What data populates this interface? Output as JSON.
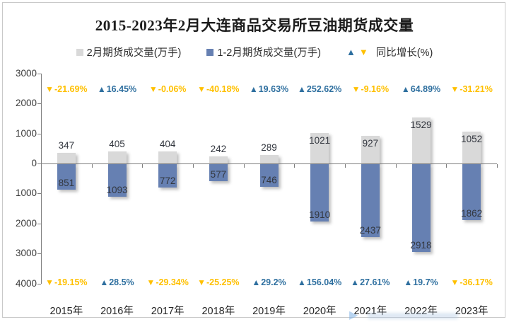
{
  "title": "2015-2023年2月大连商品交易所豆油期货成交量",
  "legend": {
    "feb": "2月期货成交量(万手)",
    "janfeb": "1-2月期货成交量(万手)",
    "growth": "同比增长(%)"
  },
  "colors": {
    "feb_bar": "#d9d9d9",
    "janfeb_bar": "#6680b2",
    "positive": "#2e6f9f",
    "negative": "#ffc000",
    "axis": "#7f7f7f"
  },
  "chart_data": {
    "type": "bar",
    "title": "2015-2023年2月大连商品交易所豆油期货成交量",
    "categories": [
      "2015年",
      "2016年",
      "2017年",
      "2018年",
      "2019年",
      "2020年",
      "2021年",
      "2022年",
      "2023年"
    ],
    "series": [
      {
        "name": "2月期货成交量(万手)",
        "direction": "up",
        "values": [
          347,
          405,
          404,
          242,
          289,
          1021,
          927,
          1529,
          1052
        ]
      },
      {
        "name": "1-2月期货成交量(万手)",
        "direction": "down",
        "values": [
          851,
          1093,
          772,
          577,
          746,
          1910,
          2437,
          2918,
          1862
        ]
      }
    ],
    "growth_series": [
      {
        "name": "2月同比增长(%)",
        "position": "top",
        "values": [
          "-21.69%",
          "16.45%",
          "-0.06%",
          "-40.18%",
          "19.63%",
          "252.62%",
          "-9.16%",
          "64.89%",
          "-31.21%"
        ]
      },
      {
        "name": "1-2月同比增长(%)",
        "position": "bottom",
        "values": [
          "-19.15%",
          "28.5%",
          "-29.34%",
          "-25.25%",
          "29.2%",
          "156.04%",
          "27.61%",
          "19.7%",
          "-36.17%"
        ]
      }
    ],
    "y_axis": {
      "tick_labels": [
        "3000",
        "2000",
        "1000",
        "0",
        "1000",
        "2000",
        "3000",
        "4000"
      ],
      "up_max": 3000,
      "down_max": 4000,
      "grid": false
    },
    "legend_position": "top"
  }
}
